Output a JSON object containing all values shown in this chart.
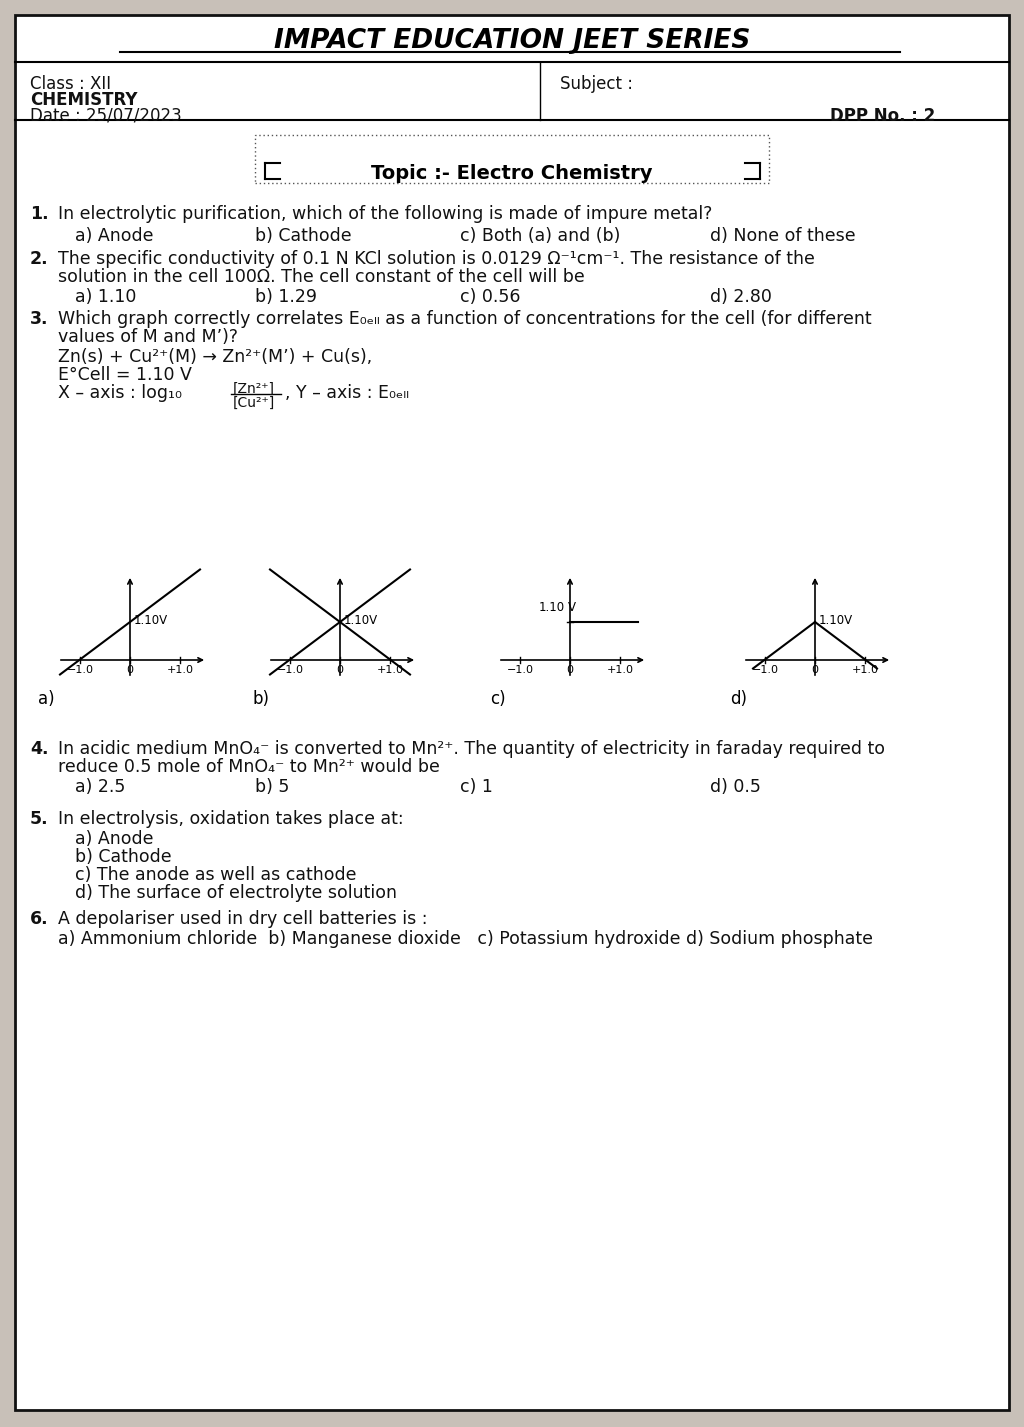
{
  "title": "IMPACT EDUCATION JEET SERIES",
  "class_line": "Class : XII",
  "subject_line": "Subject :",
  "chemistry_line": "CHEMISTRY",
  "date_line": "Date : 25/07/2023",
  "dpp_line": "DPP No. : 2",
  "topic": "Topic :- Electro Chemistry",
  "bg_color": "#c8c0b8",
  "text_color": "#111111",
  "q1_num": "1.",
  "q1_text": "In electrolytic purification, which of the following is made of impure metal?",
  "q1_a": "a) Anode",
  "q1_b": "b) Cathode",
  "q1_c": "c) Both (a) and (b)",
  "q1_d": "d) None of these",
  "q2_num": "2.",
  "q2_text": "The specific conductivity of 0.1 N KCl solution is 0.0129 Ω⁻¹cm⁻¹. The resistance of the\n   solution in the cell 100Ω. The cell constant of the cell will be",
  "q2_a": "a) 1.10",
  "q2_b": "b) 1.29",
  "q2_c": "c) 0.56",
  "q2_d": "d) 2.80",
  "q3_num": "3.",
  "q3_line1": "Which graph correctly correlates E₀ₑₗₗ as a function of concentrations for the cell (for different",
  "q3_line2": "values of M and M’)?",
  "q3_reaction": "Zn(s) + Cu²⁺(M) → Zn²⁺(M’) + Cu(s),",
  "q3_ecell": "E°Cell = 1.10 V",
  "q3_xaxis": "X – axis : log₁₀",
  "q3_fraction_num": "[Zn²⁺]",
  "q3_fraction_den": "[Cu²⁺]",
  "q3_yaxis": ", Y – axis : E₀ₑₗₗ",
  "q4_num": "4.",
  "q4_line1": "In acidic medium MnO₄⁻ is converted to Mn²⁺. The quantity of electricity in faraday required to",
  "q4_line2": "reduce 0.5 mole of MnO₄⁻ to Mn²⁺ would be",
  "q4_a": "a) 2.5",
  "q4_b": "b) 5",
  "q4_c": "c) 1",
  "q4_d": "d) 0.5",
  "q5_num": "5.",
  "q5_text": "In electrolysis, oxidation takes place at:",
  "q5_a": "a) Anode",
  "q5_b": "b) Cathode",
  "q5_c": "c) The anode as well as cathode",
  "q5_d": "d) The surface of electrolyte solution",
  "q6_num": "6.",
  "q6_text": "A depolariser used in dry cell batteries is :",
  "q6_opts": "a) Ammonium chloride  b) Manganese dioxide   c) Potassium hydroxide d) Sodium phosphate"
}
